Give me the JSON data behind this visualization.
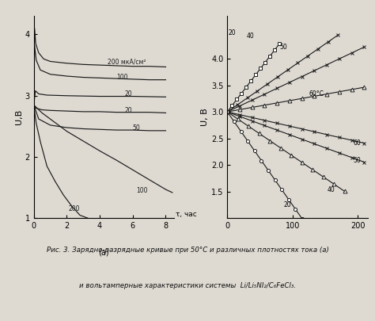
{
  "fig_width": 4.74,
  "fig_height": 4.05,
  "bg_color": "#dedad2",
  "caption_line1": "Рис. 3. Зарядно-разрядные кривые при 50°C и различных плотностях тока (a)",
  "caption_line2": "и вольтамперные характеристики системы  Li/Li₅NI₂/C₆FeCl₃.",
  "left_ylabel": "U,В",
  "left_xlabel_tau": "τ, час",
  "left_xlabel_a": "(a)",
  "left_xlim": [
    0,
    8.5
  ],
  "left_ylim": [
    1.0,
    4.3
  ],
  "left_yticks": [
    1,
    2,
    3,
    4
  ],
  "left_xticks": [
    0,
    2,
    4,
    6,
    8
  ],
  "right_ylabel": "U, В",
  "right_xlim": [
    0,
    215
  ],
  "right_ylim": [
    1.0,
    4.8
  ],
  "right_yticks": [
    1.5,
    2.0,
    2.5,
    3.0,
    3.5,
    4.0
  ],
  "right_xticks": [
    0,
    100,
    200
  ],
  "charge_curves": {
    "200c": {
      "t": [
        0,
        0.05,
        0.12,
        0.3,
        0.6,
        1,
        2,
        3,
        4,
        5,
        6,
        7,
        8
      ],
      "v": [
        2.85,
        4.1,
        3.85,
        3.7,
        3.6,
        3.56,
        3.53,
        3.51,
        3.5,
        3.49,
        3.48,
        3.48,
        3.47
      ]
    },
    "100c": {
      "t": [
        0,
        0.05,
        0.15,
        0.4,
        1,
        2,
        3,
        4,
        5,
        6,
        7,
        8
      ],
      "v": [
        2.85,
        3.82,
        3.58,
        3.42,
        3.35,
        3.32,
        3.3,
        3.29,
        3.28,
        3.27,
        3.26,
        3.26
      ]
    },
    "20c": {
      "t": [
        0,
        0.1,
        0.3,
        0.8,
        2,
        4,
        6,
        8
      ],
      "v": [
        2.85,
        3.08,
        3.03,
        3.01,
        3.0,
        2.99,
        2.99,
        2.98
      ]
    },
    "20d_flat": {
      "t": [
        0,
        0.1,
        0.5,
        1,
        2,
        3,
        4,
        5,
        6,
        7,
        8
      ],
      "v": [
        2.85,
        2.8,
        2.77,
        2.76,
        2.75,
        2.74,
        2.74,
        2.73,
        2.73,
        2.73,
        2.72
      ]
    },
    "50d": {
      "t": [
        0,
        0.3,
        1,
        2,
        3,
        4,
        5,
        6,
        7,
        8
      ],
      "v": [
        2.85,
        2.62,
        2.52,
        2.48,
        2.46,
        2.45,
        2.44,
        2.44,
        2.43,
        2.43
      ]
    },
    "200d": {
      "t": [
        0,
        0.15,
        0.4,
        0.8,
        1.3,
        1.8,
        2.3,
        2.8,
        3.1,
        3.3
      ],
      "v": [
        2.85,
        2.55,
        2.25,
        1.85,
        1.6,
        1.38,
        1.2,
        1.05,
        1.02,
        1.0
      ]
    },
    "100d": {
      "t": [
        0,
        0.5,
        1,
        2,
        3,
        4,
        5,
        6,
        7,
        8,
        8.4
      ],
      "v": [
        2.85,
        2.72,
        2.62,
        2.42,
        2.26,
        2.1,
        1.95,
        1.79,
        1.63,
        1.47,
        1.42
      ]
    }
  },
  "volt_curves": {
    "20_charge": {
      "label": "20",
      "marker": "s",
      "mfc": "white",
      "i_max": 80,
      "slope": 0.016,
      "v0": 3.0
    },
    "40_charge": {
      "label": "40",
      "marker": "x",
      "mfc": "black",
      "i_max": 170,
      "slope": 0.0085,
      "v0": 3.0
    },
    "50_charge": {
      "label": "50",
      "marker": "x",
      "mfc": "black",
      "i_max": 210,
      "slope": 0.0058,
      "v0": 3.0
    },
    "60C": {
      "label": "60°C",
      "marker": "^",
      "mfc": "white",
      "i_max": 210,
      "slope": 0.0022,
      "v0": 3.0
    },
    "60d": {
      "label": "60",
      "marker": "x",
      "mfc": "black",
      "i_max": 210,
      "slope": -0.0028,
      "v0": 3.0
    },
    "50d": {
      "label": "50",
      "marker": "x",
      "mfc": "black",
      "i_max": 210,
      "slope": -0.0045,
      "v0": 3.0
    },
    "40d": {
      "label": "40",
      "marker": "^",
      "mfc": "white",
      "i_max": 180,
      "slope": -0.0083,
      "v0": 3.0
    },
    "20d": {
      "label": "20",
      "marker": "o",
      "mfc": "white",
      "i_max": 115,
      "slope": -0.0175,
      "v0": 3.0
    }
  }
}
